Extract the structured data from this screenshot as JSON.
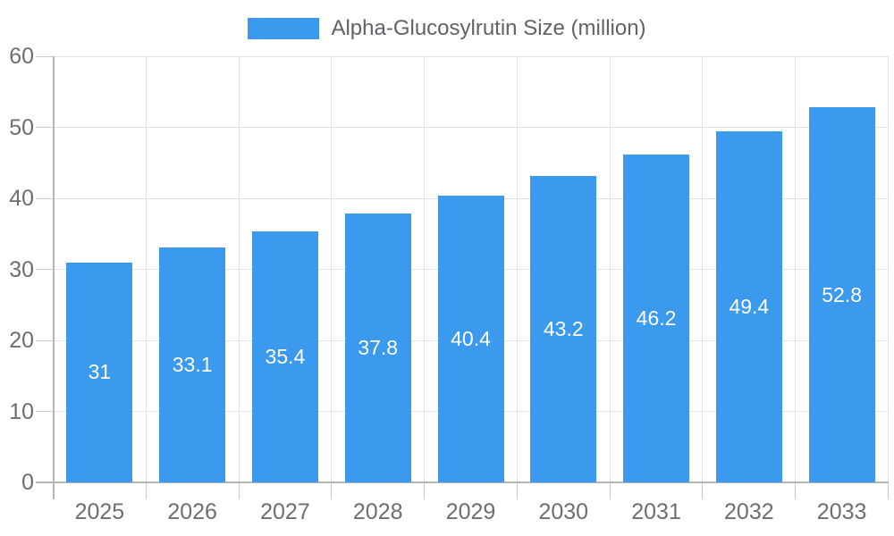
{
  "legend": {
    "label": "Alpha-Glucosylrutin Size (million)"
  },
  "chart_data": {
    "type": "bar",
    "title": "",
    "legend_label": "Alpha-Glucosylrutin Size (million)",
    "legend_position": "top-center",
    "categories": [
      "2025",
      "2026",
      "2027",
      "2028",
      "2029",
      "2030",
      "2031",
      "2032",
      "2033"
    ],
    "values": [
      31,
      33.1,
      35.4,
      37.8,
      40.4,
      43.2,
      46.2,
      49.4,
      52.8
    ],
    "value_labels": [
      "31",
      "33.1",
      "35.4",
      "37.8",
      "40.4",
      "43.2",
      "46.2",
      "49.4",
      "52.8"
    ],
    "xlabel": "",
    "ylabel": "",
    "ylim": [
      0,
      60
    ],
    "ytick_step": 10,
    "y_ticks": [
      "0",
      "10",
      "20",
      "30",
      "40",
      "50",
      "60"
    ],
    "grid": true,
    "bar_labels_inside": true
  },
  "colors": {
    "bar": "#3b99ee",
    "bar_label": "#ffffff",
    "gridline": "#e3e3e3",
    "axis_line": "#b5b5b5",
    "tick_mark": "#c9c9c9",
    "axis_label_text": "#6e6e6e",
    "legend_text": "#5f6368",
    "background": "#ffffff"
  }
}
